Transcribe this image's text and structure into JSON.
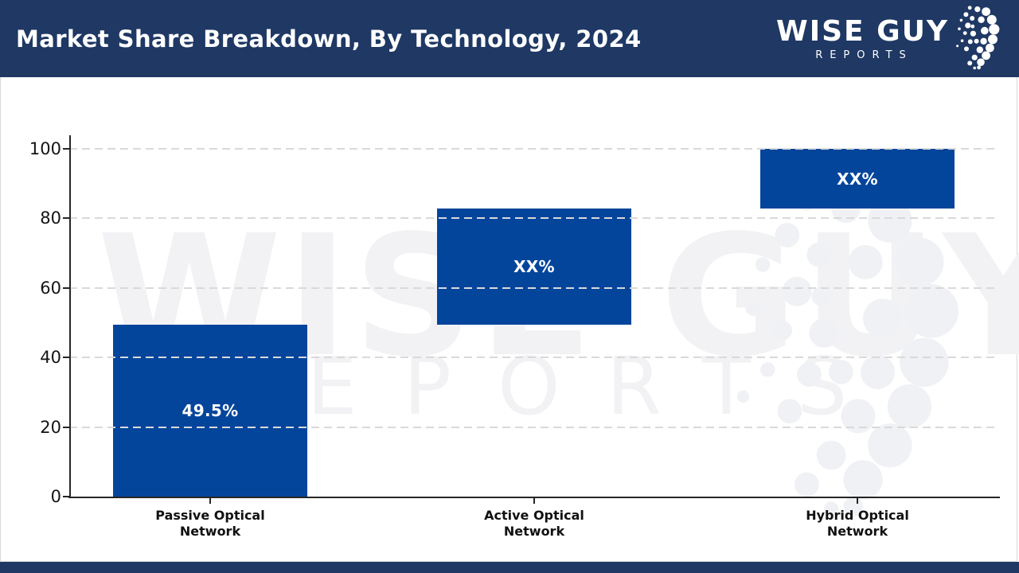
{
  "header": {
    "title": "Market Share Breakdown, By Technology, 2024",
    "background_color": "#1F3864",
    "logo": {
      "line1": "WISE GUY",
      "line2": "REPORTS"
    }
  },
  "watermark": {
    "line1": "WISE GUY",
    "line2": "REPORTS"
  },
  "chart_data": {
    "type": "bar",
    "subtype": "waterfall",
    "title": "Market Share Breakdown, By Technology, 2024",
    "xlabel": "",
    "ylabel": "",
    "categories": [
      {
        "line1": "Passive Optical",
        "line2": "Network"
      },
      {
        "line1": "Active Optical",
        "line2": "Network"
      },
      {
        "line1": "Hybrid Optical",
        "line2": "Network"
      }
    ],
    "bars": [
      {
        "category": "Passive Optical Network",
        "start": 0,
        "end": 49.5,
        "label": "49.5%"
      },
      {
        "category": "Active Optical Network",
        "start": 49.5,
        "end": 82.8,
        "label": "XX%"
      },
      {
        "category": "Hybrid Optical Network",
        "start": 82.8,
        "end": 100,
        "label": "XX%"
      }
    ],
    "bar_color": "#04459C",
    "bar_label_color": "#FFFFFF",
    "yticks": [
      0,
      20,
      40,
      60,
      80,
      100
    ],
    "ylim": [
      0,
      104
    ],
    "grid": "horizontal-dashed",
    "grid_color": "#d9d9d9",
    "legend": "none"
  }
}
